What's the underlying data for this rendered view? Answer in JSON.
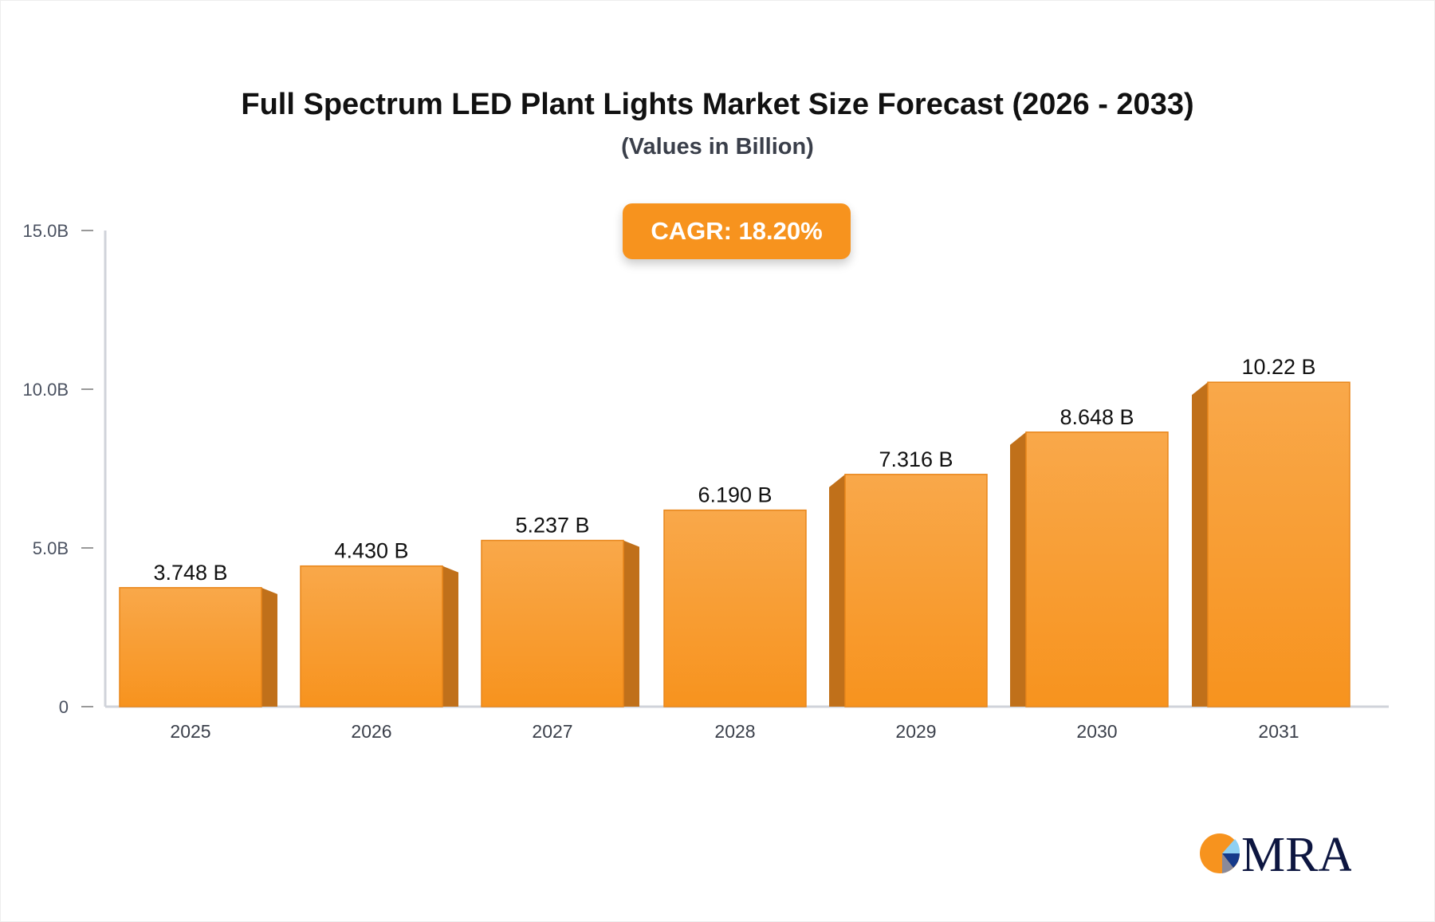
{
  "chart_data": {
    "type": "bar",
    "title": "Full Spectrum LED Plant Lights Market Size Forecast (2026 - 2033)",
    "subtitle": "(Values in Billion)",
    "annotation": "CAGR: 18.20%",
    "categories": [
      "2025",
      "2026",
      "2027",
      "2028",
      "2029",
      "2030",
      "2031"
    ],
    "values": [
      3.748,
      4.43,
      5.237,
      6.19,
      7.316,
      8.648,
      10.22
    ],
    "data_labels": [
      "3.748 B",
      "4.430 B",
      "5.237 B",
      "6.190 B",
      "7.316 B",
      "8.648 B",
      "10.22 B"
    ],
    "yticks": [
      0,
      5,
      10,
      15
    ],
    "ytick_labels": [
      "0",
      "5.0B",
      "10.0B",
      "15.0B"
    ],
    "ylim": [
      0,
      15
    ],
    "xlabel": "",
    "ylabel": "",
    "grid": false,
    "colors": {
      "bar_top": "#f9a84a",
      "bar_bottom": "#f7931e",
      "bar_side": "#c0701a",
      "axis": "#d0d3da"
    }
  },
  "logo": {
    "text": "MRA"
  }
}
